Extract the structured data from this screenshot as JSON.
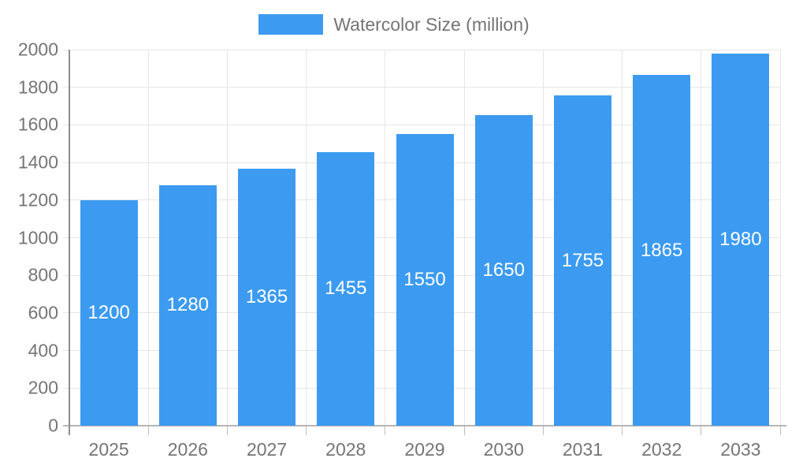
{
  "chart_data": {
    "type": "bar",
    "legend": "Watercolor Size (million)",
    "legend_position": "top",
    "categories": [
      "2025",
      "2026",
      "2027",
      "2028",
      "2029",
      "2030",
      "2031",
      "2032",
      "2033"
    ],
    "series": [
      {
        "name": "Watercolor Size (million)",
        "values": [
          1200,
          1280,
          1365,
          1455,
          1550,
          1650,
          1755,
          1865,
          1980
        ]
      }
    ],
    "value_labels": [
      "1200",
      "1280",
      "1365",
      "1455",
      "1550",
      "1650",
      "1755",
      "1865",
      "1980"
    ],
    "xlabel": "",
    "ylabel": "",
    "ylim": [
      0,
      2000
    ],
    "yticks": [
      0,
      200,
      400,
      600,
      800,
      1000,
      1200,
      1400,
      1600,
      1800,
      2000
    ],
    "grid": true,
    "colors": {
      "bar": "#3C9BF0",
      "value_label": "#ffffff",
      "axis_text": "#757575",
      "gridline": "#e6e6e6",
      "y_axis_line": "#8f8f8f",
      "x_axis_line": "#b5b5b5",
      "background": "#ffffff"
    }
  }
}
